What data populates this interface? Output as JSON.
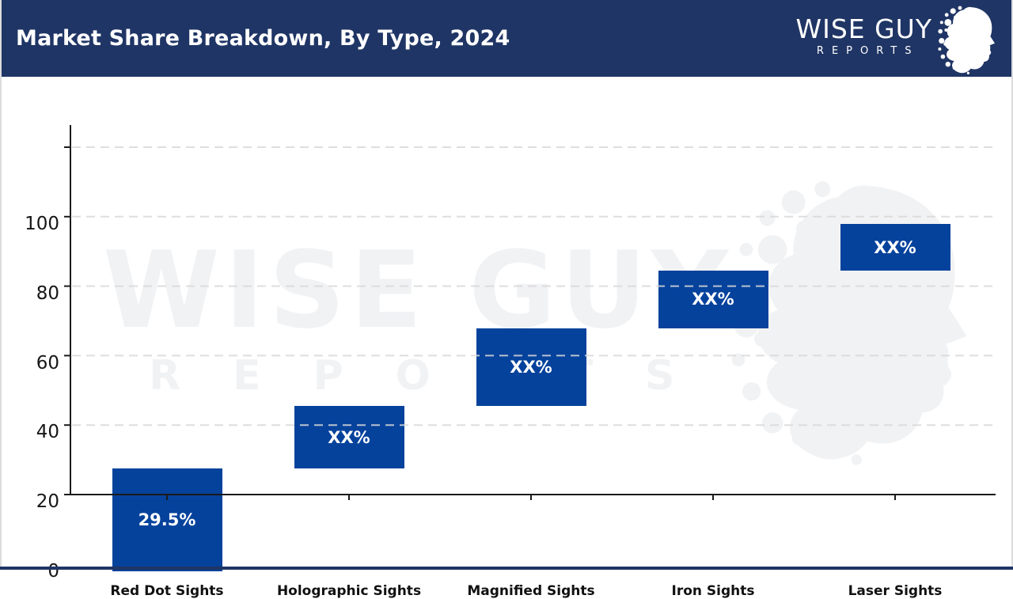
{
  "header": {
    "title": "Market Share Breakdown, By Type, 2024",
    "brand": {
      "line1": "WISE GUY",
      "line2": "REPORTS"
    }
  },
  "watermark": {
    "line1": "WISE GUY",
    "line2": "REPORTS"
  },
  "chart_data": {
    "type": "bar",
    "subtype": "waterfall",
    "title": "Market Share Breakdown, By Type, 2024",
    "categories": [
      "Red Dot Sights",
      "Holographic Sights",
      "Magnified Sights",
      "Iron Sights",
      "Laser Sights"
    ],
    "segments": [
      {
        "start": 0,
        "end": 29.5
      },
      {
        "start": 29.5,
        "end": 47.5
      },
      {
        "start": 47.5,
        "end": 70
      },
      {
        "start": 70,
        "end": 86.5
      },
      {
        "start": 86.5,
        "end": 100
      }
    ],
    "bar_labels": [
      "29.5%",
      "XX%",
      "XX%",
      "XX%",
      "XX%"
    ],
    "xlabel": "",
    "ylabel": "",
    "ylim": [
      0,
      105
    ],
    "yticks": [
      0,
      20,
      40,
      60,
      80,
      100
    ],
    "grid": "horizontal-dashed",
    "legend": "none",
    "bar_color": "#05429c"
  }
}
